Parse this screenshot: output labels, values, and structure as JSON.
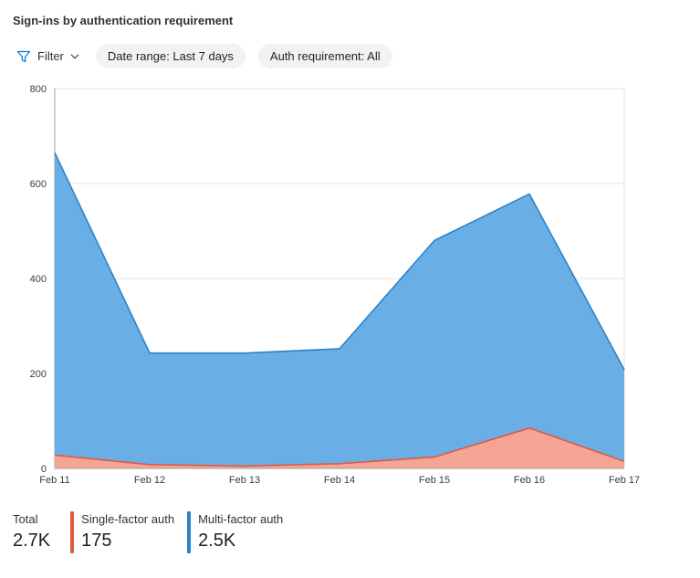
{
  "page": {
    "title": "Sign-ins by authentication requirement"
  },
  "filters": {
    "filter_label": "Filter",
    "chips": [
      {
        "label": "Date range: Last 7 days"
      },
      {
        "label": "Auth requirement: All"
      }
    ]
  },
  "chart_data": {
    "type": "area",
    "stacked": true,
    "title": "Sign-ins by authentication requirement",
    "xlabel": "",
    "ylabel": "",
    "categories": [
      "Feb 11",
      "Feb 12",
      "Feb 13",
      "Feb 14",
      "Feb 15",
      "Feb 16",
      "Feb 17"
    ],
    "series": [
      {
        "name": "Single-factor auth",
        "values": [
          28,
          8,
          5,
          10,
          24,
          85,
          15
        ],
        "fill": "#f5a593",
        "stroke": "#dd5a45"
      },
      {
        "name": "Multi-factor auth",
        "values": [
          637,
          235,
          238,
          242,
          456,
          493,
          193
        ],
        "fill": "#6aaee6",
        "stroke": "#2b83c9"
      }
    ],
    "ylim": [
      0,
      800
    ],
    "yticks": [
      0,
      200,
      400,
      600,
      800
    ],
    "grid": true,
    "legend_position": "bottom",
    "colors": {
      "gridline": "#e3e3e3",
      "axis": "#a19f9d",
      "tick_text": "#3b3a39"
    }
  },
  "legend": {
    "total": {
      "label": "Total",
      "value": "2.7K"
    },
    "items": [
      {
        "label": "Single-factor auth",
        "value": "175",
        "color": "#dd5a45"
      },
      {
        "label": "Multi-factor auth",
        "value": "2.5K",
        "color": "#2b83c9"
      }
    ]
  },
  "icons": {
    "filter": "funnel-icon",
    "chevron": "chevron-down-icon"
  },
  "accent_color": "#0078d4"
}
